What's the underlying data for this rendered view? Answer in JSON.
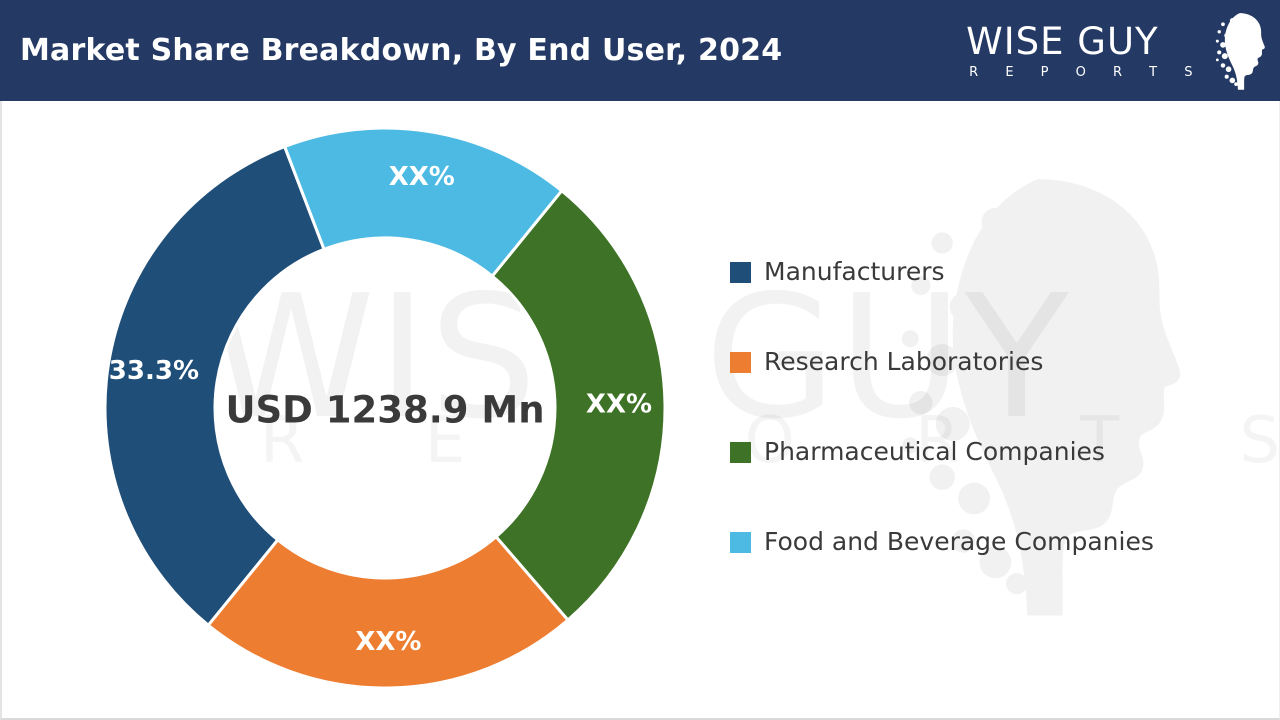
{
  "header": {
    "title": "Market Share Breakdown, By End User, 2024",
    "logo": {
      "line1": "WISE GUY",
      "line2": "R E P O R T S"
    }
  },
  "watermark": {
    "line1": "WISE GUY",
    "line2": "R E P O R T S"
  },
  "chart_data": {
    "type": "pie",
    "donut": true,
    "title": "Market Share Breakdown, By End User, 2024",
    "center_label": "USD 1238.9 Mn",
    "start_angle_deg": 111,
    "direction": "counterclockwise",
    "legend_position": "right",
    "segments": [
      {
        "label": "Manufacturers",
        "value": 33.3,
        "display_label": "33.3%",
        "color": "#1f4e78"
      },
      {
        "label": "Research Laboratories",
        "value": 22.2,
        "display_label": "XX%",
        "color": "#ed7d31"
      },
      {
        "label": "Pharmaceutical Companies",
        "value": 27.8,
        "display_label": "XX%",
        "color": "#3e7226"
      },
      {
        "label": "Food and Beverage Companies",
        "value": 16.7,
        "display_label": "XX%",
        "color": "#4dbae4"
      }
    ],
    "colors": {
      "header_background": "#243a64",
      "label_text": "#ffffff",
      "center_text": "#3a3a3a",
      "legend_text": "#3a3a3a"
    }
  }
}
